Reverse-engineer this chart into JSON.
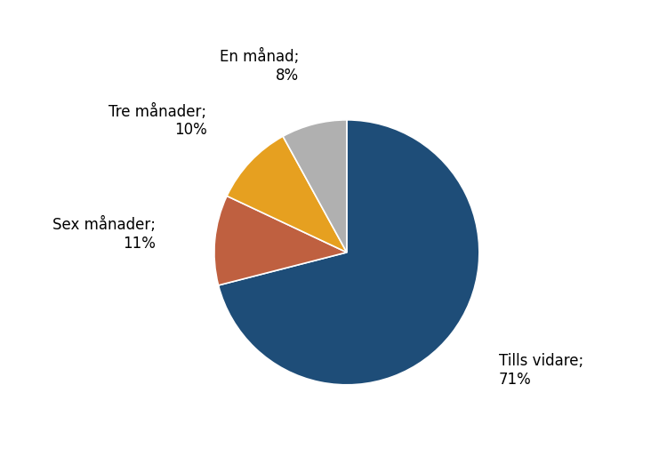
{
  "slices": [
    {
      "label": "Tills vidare;\n71%",
      "value": 71,
      "color": "#1e4d78"
    },
    {
      "label": "Sex månader;\n11%",
      "value": 11,
      "color": "#bf6040"
    },
    {
      "label": "Tre månader;\n10%",
      "value": 10,
      "color": "#e6a020"
    },
    {
      "label": "En månad;\n8%",
      "value": 8,
      "color": "#b0b0b0"
    }
  ],
  "start_angle": 90,
  "background_color": "#ffffff",
  "label_fontsize": 12,
  "label_color": "#000000",
  "figsize": [
    7.5,
    5.23
  ],
  "dpi": 100
}
